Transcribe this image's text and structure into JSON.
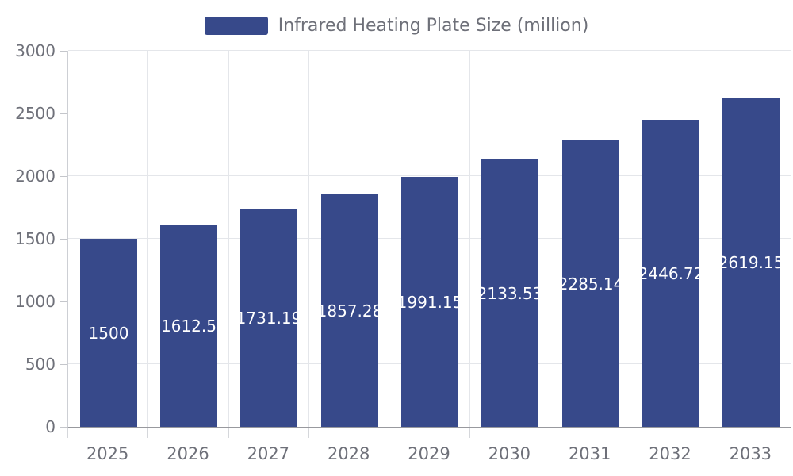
{
  "legend": {
    "label": "Infrared Heating Plate Size (million)"
  },
  "chart_data": {
    "type": "bar",
    "title": "Infrared Heating Plate Size (million)",
    "categories": [
      "2025",
      "2026",
      "2027",
      "2028",
      "2029",
      "2030",
      "2031",
      "2032",
      "2033"
    ],
    "values": [
      1500,
      1612.5,
      1731.19,
      1857.28,
      1991.15,
      2133.53,
      2285.14,
      2446.72,
      2619.15
    ],
    "bar_labels": [
      "1500",
      "1612.5",
      "1731.19",
      "1857.28",
      "1991.15",
      "2133.53",
      "2285.14",
      "2446.72",
      "2619.15"
    ],
    "xlabel": "",
    "ylabel": "",
    "ylim": [
      0,
      3000
    ],
    "y_ticks": [
      0,
      500,
      1000,
      1500,
      2000,
      2500,
      3000
    ],
    "grid": true,
    "legend_position": "top-center",
    "colors": {
      "bar": "#37498A",
      "bar_label": "#FFFFFF",
      "axis_text": "#6E7079",
      "gridline": "#E4E6EA",
      "axis_line": "#98999E"
    }
  }
}
